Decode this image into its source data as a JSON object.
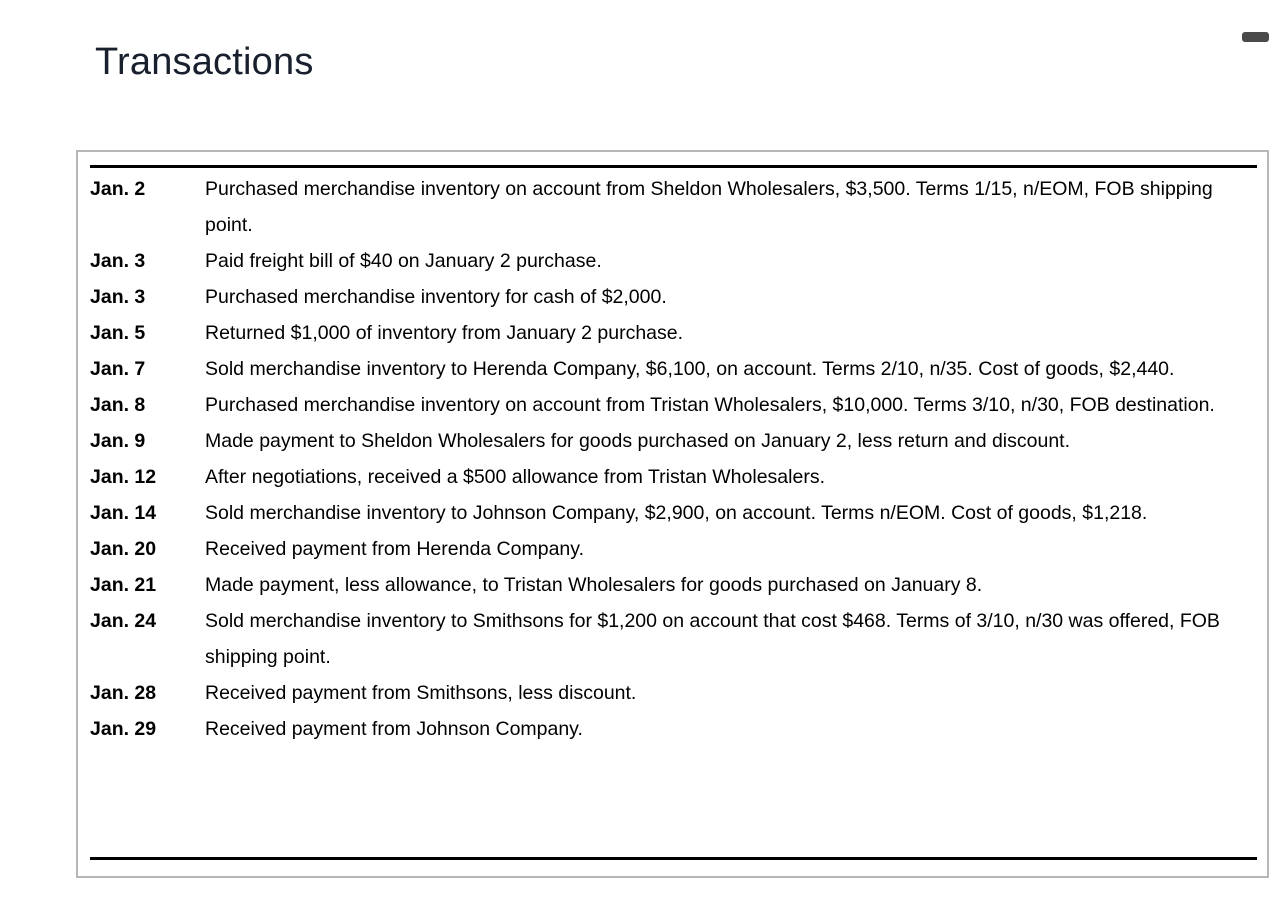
{
  "page": {
    "title": "Transactions",
    "title_color": "#18202e",
    "background_color": "#ffffff"
  },
  "scroll_indicator": {
    "color": "#4a4a4a"
  },
  "transactions_table": {
    "border_color": "#b7b7b7",
    "rule_color": "#000000",
    "rows": [
      {
        "date": "Jan. 2",
        "description": "Purchased merchandise inventory on account from Sheldon Wholesalers, $3,500. Terms 1/15, n/EOM, FOB shipping point."
      },
      {
        "date": "Jan. 3",
        "description": "Paid freight bill of $40 on January 2 purchase."
      },
      {
        "date": "Jan. 3",
        "description": "Purchased merchandise inventory for cash of $2,000."
      },
      {
        "date": "Jan. 5",
        "description": "Returned $1,000 of inventory from January 2 purchase."
      },
      {
        "date": "Jan. 7",
        "description": "Sold merchandise inventory to Herenda Company, $6,100, on account. Terms 2/10, n/35. Cost of goods, $2,440."
      },
      {
        "date": "Jan. 8",
        "description": "Purchased merchandise inventory on account from Tristan Wholesalers, $10,000. Terms 3/10, n/30, FOB destination."
      },
      {
        "date": "Jan. 9",
        "description": "Made payment to Sheldon Wholesalers for goods purchased on January 2, less return and discount."
      },
      {
        "date": "Jan. 12",
        "description": "After negotiations, received a $500 allowance from Tristan Wholesalers."
      },
      {
        "date": "Jan. 14",
        "description": "Sold merchandise inventory to Johnson Company, $2,900, on account. Terms n/EOM. Cost of goods, $1,218."
      },
      {
        "date": "Jan. 20",
        "description": "Received payment from Herenda Company."
      },
      {
        "date": "Jan. 21",
        "description": "Made payment, less allowance, to Tristan Wholesalers for goods purchased on January 8."
      },
      {
        "date": "Jan. 24",
        "description": "Sold merchandise inventory to Smithsons for $1,200 on account that cost $468. Terms of 3/10, n/30 was offered, FOB shipping point."
      },
      {
        "date": "Jan. 28",
        "description": "Received payment from Smithsons, less discount."
      },
      {
        "date": "Jan. 29",
        "description": "Received payment from Johnson Company."
      }
    ]
  }
}
